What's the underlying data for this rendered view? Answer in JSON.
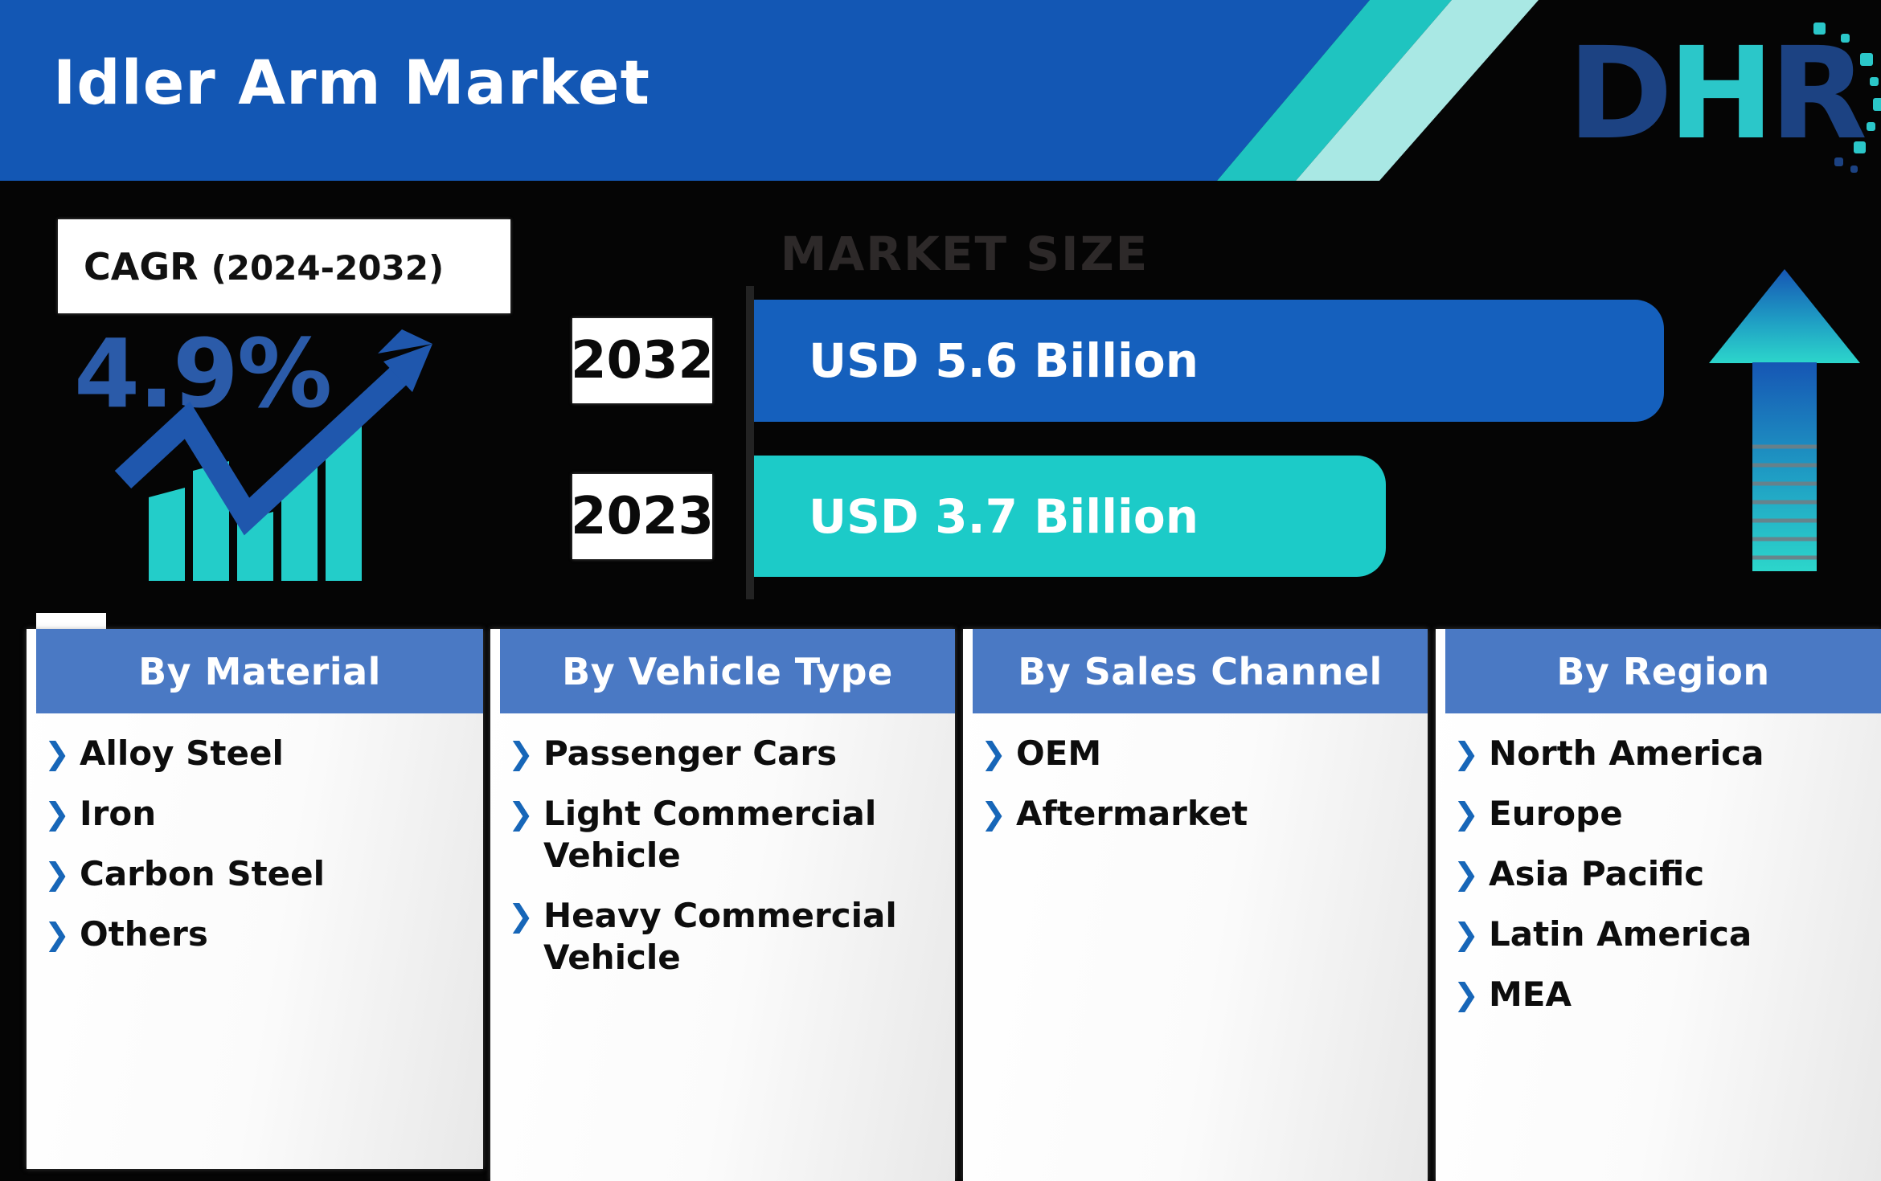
{
  "header": {
    "title": "Idler Arm Market",
    "logo": {
      "d": "D",
      "h": "H",
      "r": "R"
    }
  },
  "cagr": {
    "label_main": "CAGR",
    "label_range": "(2024-2032)",
    "value": "4.9%"
  },
  "market_size": {
    "heading": "MARKET SIZE",
    "rows": [
      {
        "year": "2032",
        "value": "USD 5.6 Billion"
      },
      {
        "year": "2023",
        "value": "USD 3.7 Billion"
      }
    ]
  },
  "segments": [
    {
      "title": "By Material",
      "items": [
        "Alloy Steel",
        "Iron",
        "Carbon Steel",
        "Others"
      ]
    },
    {
      "title": "By Vehicle Type",
      "items": [
        "Passenger Cars",
        "Light Commercial Vehicle",
        "Heavy Commercial Vehicle"
      ]
    },
    {
      "title": "By Sales Channel",
      "items": [
        "OEM",
        "Aftermarket"
      ]
    },
    {
      "title": "By Region",
      "items": [
        "North America",
        "Europe",
        "Asia Pacific",
        "Latin America",
        "MEA"
      ]
    }
  ],
  "ui": {
    "chevron_glyph": "❯",
    "colors": {
      "header_blue": "#1357b4",
      "bar_blue": "#1560bd",
      "bar_teal": "#1ccbc8",
      "column_header_blue": "#4a79c4",
      "stripe_teal": "#1fc4c0",
      "stripe_light_teal": "#a9e8e4",
      "cagr_value_blue": "#2b5ba9",
      "background": "#050505"
    }
  },
  "chart_data": {
    "type": "bar",
    "orientation": "horizontal",
    "title": "MARKET SIZE",
    "categories": [
      "2032",
      "2023"
    ],
    "values": [
      5.6,
      3.7
    ],
    "unit": "USD Billion",
    "data_labels": [
      "USD 5.6 Billion",
      "USD 3.7 Billion"
    ],
    "series_colors": [
      "#1560bd",
      "#1ccbc8"
    ],
    "cagr_percent": 4.9,
    "cagr_period": "2024-2032",
    "xlim": [
      0,
      6.2
    ],
    "grid": false,
    "legend": false
  }
}
